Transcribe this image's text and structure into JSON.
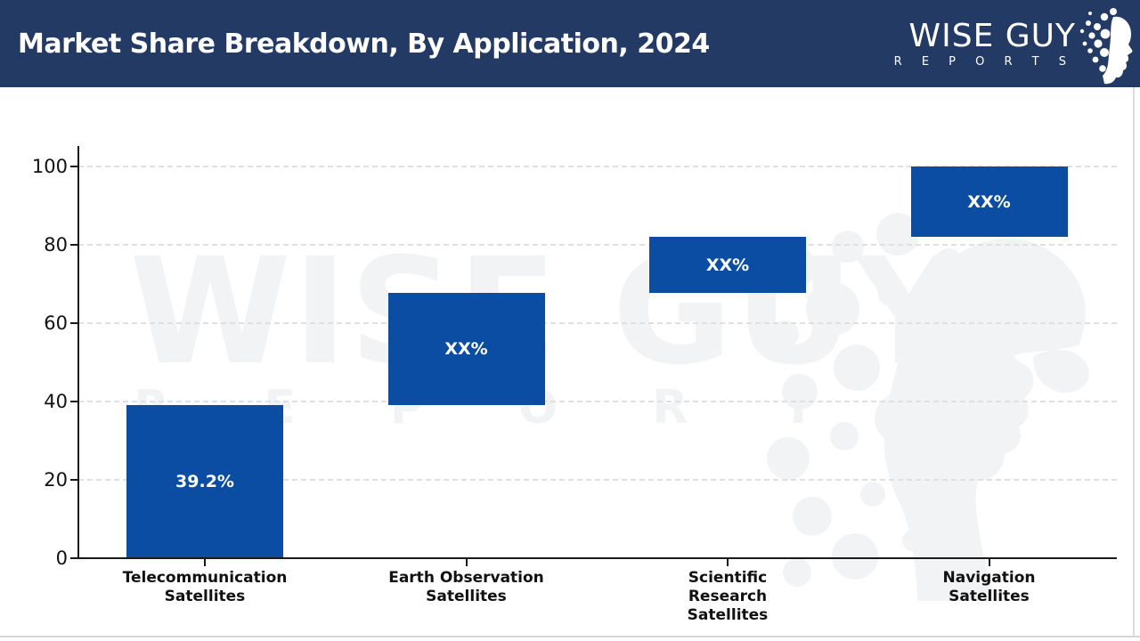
{
  "header": {
    "title": "Market Share Breakdown, By Application, 2024",
    "logo": {
      "line1": "WISE GUY",
      "line2": "R E P O R T S"
    }
  },
  "watermark": {
    "line1": "WISE GUY",
    "line2": "R E P O R T S"
  },
  "colors": {
    "header_bg": "#233a64",
    "bar": "#0a4da2",
    "bar_label": "#ffffff",
    "watermark": "#f2f3f5",
    "gridline": "#e0e0e0"
  },
  "chart_data": {
    "type": "bar",
    "variant": "waterfall",
    "title": "Market Share Breakdown, By Application, 2024",
    "categories": [
      "Telecommunication\nSatellites",
      "Earth Observation\nSatellites",
      "Scientific\nResearch\nSatellites",
      "Navigation\nSatellites"
    ],
    "series": [
      {
        "name": "Market Share (%)",
        "segments": [
          {
            "start": 0,
            "end": 39.2,
            "label": "39.2%"
          },
          {
            "start": 39.2,
            "end": 67.7,
            "label": "XX%"
          },
          {
            "start": 67.7,
            "end": 82,
            "label": "XX%"
          },
          {
            "start": 82,
            "end": 100,
            "label": "XX%"
          }
        ]
      }
    ],
    "ylim": [
      0,
      100
    ],
    "yticks": [
      0,
      20,
      40,
      60,
      80,
      100
    ],
    "xlabel": "",
    "ylabel": "",
    "grid": "horizontal-dashed",
    "legend": "none",
    "bar_color": "#0a4da2",
    "bar_label_color": "#ffffff"
  }
}
